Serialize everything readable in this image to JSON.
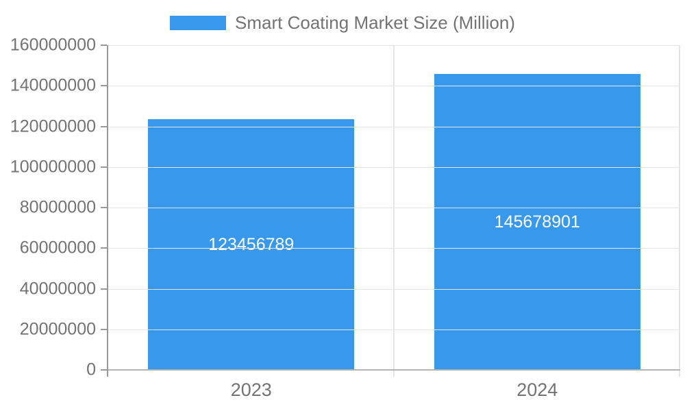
{
  "colors": {
    "bar": "#3898ec",
    "grid": "#e6e6e6",
    "axis": "#999999",
    "baseline": "#b3b3b3",
    "text": "#737373",
    "value_label": "#ffffff",
    "background": "#ffffff"
  },
  "chart_data": {
    "type": "bar",
    "title": "Smart Coating Market Size (Million)",
    "legend_entries": [
      "Smart Coating Market Size (Million)"
    ],
    "legend_position": "top-center",
    "categories": [
      "2023",
      "2024"
    ],
    "values": [
      123456789,
      145678901
    ],
    "value_labels": [
      "123456789",
      "145678901"
    ],
    "xlabel": "",
    "ylabel": "",
    "ylim": [
      0,
      160000000
    ],
    "yticks": [
      0,
      20000000,
      40000000,
      60000000,
      80000000,
      100000000,
      120000000,
      140000000,
      160000000
    ],
    "ytick_labels": [
      "0",
      "20000000",
      "40000000",
      "60000000",
      "80000000",
      "100000000",
      "120000000",
      "140000000",
      "160000000"
    ],
    "grid": true
  }
}
